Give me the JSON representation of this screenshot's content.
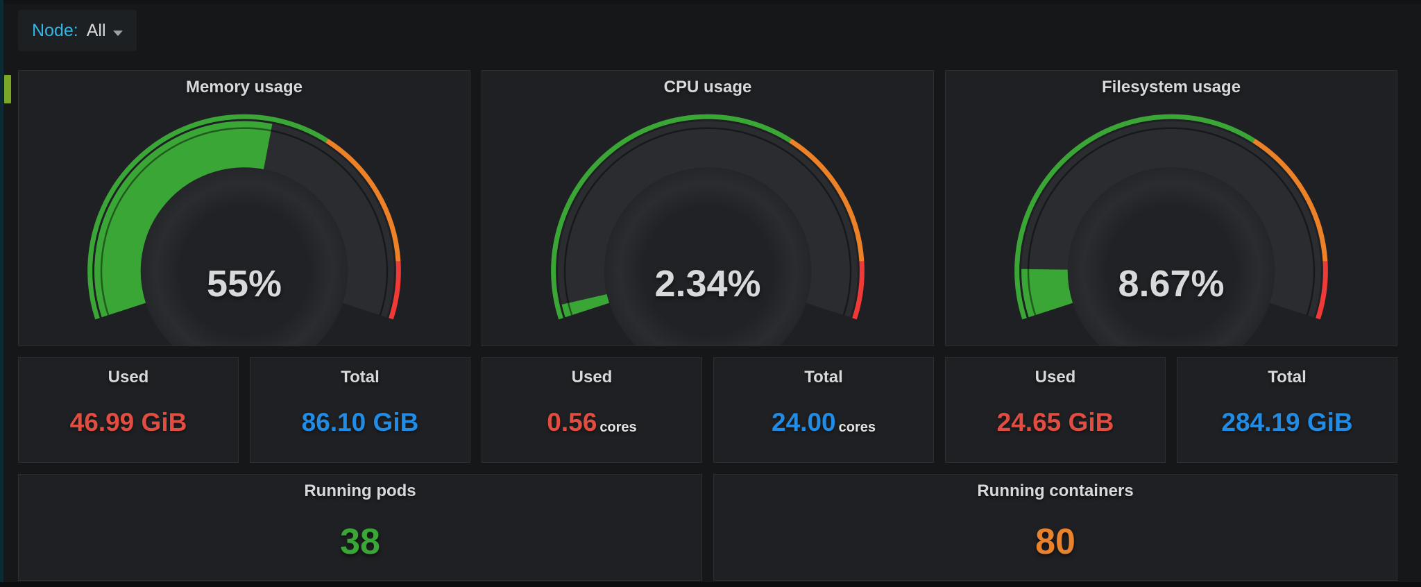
{
  "toolbar": {
    "variable_label": "Node:",
    "variable_value": "All"
  },
  "colors": {
    "gauge_green": "#3aa636",
    "gauge_orange": "#ed8128",
    "gauge_red": "#ef3a37",
    "gauge_track": "#2a2c30",
    "stat_used_red": "#e24d42",
    "stat_total_blue": "#208ce6",
    "pods_green": "#3aa636",
    "containers_orange": "#e8822c",
    "cyan_label": "#33b5e5",
    "value_gray": "#d8d9da"
  },
  "thresholds": {
    "orange_start": 65,
    "red_start": 90
  },
  "gauges": [
    {
      "title": "Memory usage",
      "value_pct": 55,
      "display": "55%"
    },
    {
      "title": "CPU usage",
      "value_pct": 2.34,
      "display": "2.34%"
    },
    {
      "title": "Filesystem usage",
      "value_pct": 8.67,
      "display": "8.67%"
    }
  ],
  "stats": [
    {
      "title": "Used",
      "value": "46.99 GiB",
      "suffix": "",
      "color_hex": "#e24d42"
    },
    {
      "title": "Total",
      "value": "86.10 GiB",
      "suffix": "",
      "color_hex": "#208ce6"
    },
    {
      "title": "Used",
      "value": "0.56",
      "suffix": "cores",
      "color_hex": "#e24d42"
    },
    {
      "title": "Total",
      "value": "24.00",
      "suffix": "cores",
      "color_hex": "#208ce6"
    },
    {
      "title": "Used",
      "value": "24.65 GiB",
      "suffix": "",
      "color_hex": "#e24d42"
    },
    {
      "title": "Total",
      "value": "284.19 GiB",
      "suffix": "",
      "color_hex": "#208ce6"
    }
  ],
  "counters": [
    {
      "title": "Running pods",
      "value": "38",
      "color_hex": "#3aa636"
    },
    {
      "title": "Running containers",
      "value": "80",
      "color_hex": "#e8822c"
    }
  ]
}
